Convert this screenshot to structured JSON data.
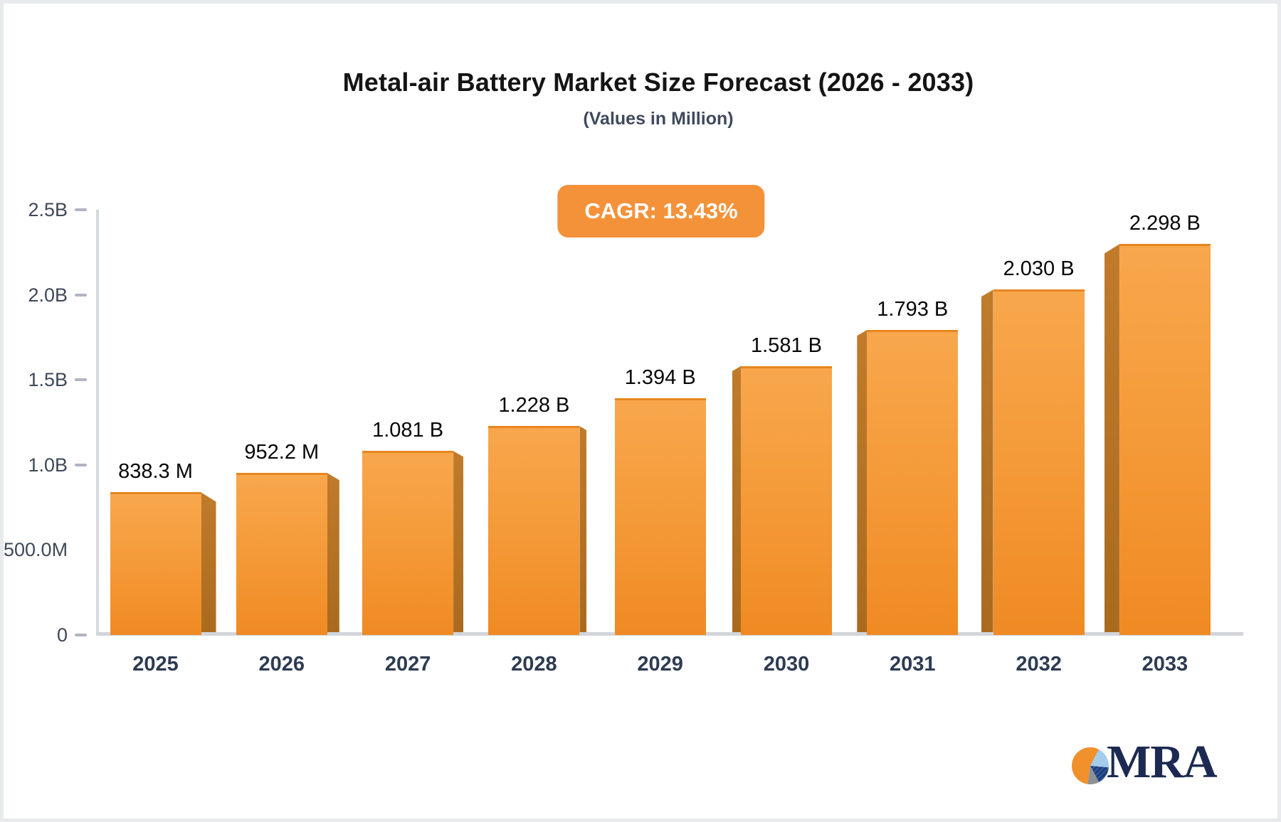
{
  "header": {
    "title": "Metal-air Battery Market Size Forecast (2026 - 2033)",
    "subtitle": "(Values in Million)",
    "cagr_badge": "CAGR: 13.43%"
  },
  "chart_data": {
    "type": "bar",
    "title": "Metal-air Battery Market Size Forecast (2026 - 2033)",
    "subtitle": "(Values in Million)",
    "cagr_percent": "13.43%",
    "categories": [
      "2025",
      "2026",
      "2027",
      "2028",
      "2029",
      "2030",
      "2031",
      "2032",
      "2033"
    ],
    "values_millions": [
      838.3,
      952.2,
      1081,
      1228,
      1394,
      1581,
      1793,
      2030,
      2298
    ],
    "bar_value_labels": [
      "838.3 M",
      "952.2 M",
      "1.081 B",
      "1.228 B",
      "1.394 B",
      "1.581 B",
      "1.793 B",
      "2.030 B",
      "2.298 B"
    ],
    "xlabel": "",
    "ylabel": "",
    "ylim_millions": [
      0,
      2500
    ],
    "y_axis": [
      {
        "label": "2.5B",
        "millions": 2500,
        "tick": true
      },
      {
        "label": "2.0B",
        "millions": 2000,
        "tick": true
      },
      {
        "label": "1.5B",
        "millions": 1500,
        "tick": true
      },
      {
        "label": "1.0B",
        "millions": 1000,
        "tick": true
      },
      {
        "label": "500.0M",
        "millions": 500,
        "tick": false
      },
      {
        "label": "0",
        "millions": 0,
        "tick": true
      }
    ],
    "grid": false,
    "legend": false,
    "style": "3d-extruded-bars, center vanishing point",
    "colors": {
      "bar_face_top": "#f8a74d",
      "bar_face_bottom": "#f08a23",
      "bar_top_edge": "#e6861f",
      "bar_side_dark": "#a96a1e",
      "badge_background": "#f4923a",
      "axis_line": "#d4d7dd",
      "tick_mark": "#afb4bf",
      "axis_text": "#3e4859",
      "category_text": "#2d3b52",
      "value_text": "#060606"
    }
  },
  "logo": {
    "text": "MRA",
    "pie": {
      "orange": "#f0912c",
      "blue": "#a3cdea",
      "navy": "#1d3f7d",
      "hatch": "#5f83c0",
      "gray": "#8f9093"
    }
  }
}
